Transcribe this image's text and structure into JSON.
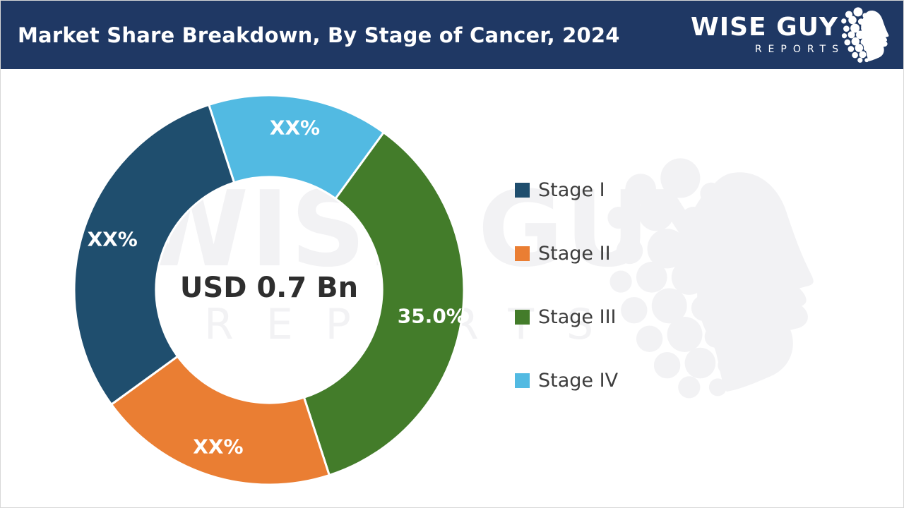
{
  "header": {
    "title": "Market Share Breakdown, By Stage of Cancer, 2024",
    "logo": {
      "name": "WISE GUY",
      "subname": "REPORTS",
      "icon": "wiseguy-face-profile"
    }
  },
  "watermark": {
    "line1": "WISE GUY",
    "line2": "REPORTS",
    "face_icon": "wiseguy-face-profile"
  },
  "colors": {
    "header_background": "#1F3864",
    "watermark": "#F2F2F4",
    "center_text": "#2E2E2E",
    "legend_text": "#3D3D3D"
  },
  "chart_data": {
    "type": "pie",
    "subtype": "donut",
    "title": "Market Share Breakdown, By Stage of Cancer, 2024",
    "center_text": "USD 0.7 Bn",
    "categories": [
      "Stage I",
      "Stage II",
      "Stage III",
      "Stage IV"
    ],
    "values": [
      30,
      20,
      35,
      15
    ],
    "value_unit": "%",
    "segment_labels": [
      "XX%",
      "XX%",
      "35.0%",
      "XX%"
    ],
    "colors": [
      "#1F4E6E",
      "#EA7E33",
      "#437C2A",
      "#52BAE2"
    ],
    "start_angle_deg": -18,
    "counterclockwise": true,
    "inner_radius_ratio": 0.58,
    "segment_label_color": "#FFFFFF",
    "legend_position": "right",
    "gridlines": false
  },
  "legend": {
    "items": [
      "Stage I",
      "Stage II",
      "Stage III",
      "Stage IV"
    ]
  }
}
